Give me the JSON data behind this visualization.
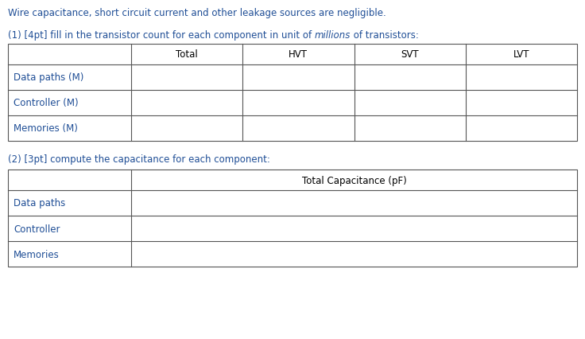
{
  "background_color": "#ffffff",
  "blue": "#1f4e96",
  "black": "#000000",
  "intro_text": "Wire capacitance, short circuit current and other leakage sources are negligible.",
  "s1_pre": "(1) [4pt] fill in the transistor count for each component in unit of ",
  "s1_italic": "millions",
  "s1_post": " of transistors:",
  "table1_headers": [
    "",
    "Total",
    "HVT",
    "SVT",
    "LVT"
  ],
  "table1_rows": [
    "Data paths (M)",
    "Controller (M)",
    "Memories (M)"
  ],
  "s2_label": "(2) [3pt] compute the capacitance for each component:",
  "table2_col2_header": "Total Capacitance (pF)",
  "table2_rows": [
    "Data paths",
    "Controller",
    "Memories"
  ],
  "fig_width": 7.36,
  "fig_height": 4.27,
  "dpi": 100
}
